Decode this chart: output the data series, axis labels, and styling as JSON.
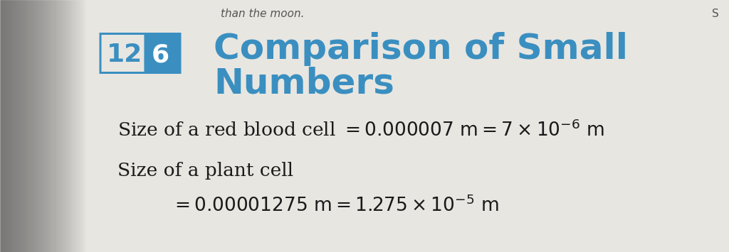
{
  "background_color": "#e8e6e1",
  "top_text": "than the moon.",
  "top_right_text": "S",
  "badge_left_text": "12.",
  "badge_right_text": "6",
  "badge_border_color": "#3a8fc0",
  "badge_left_bg": "#e8e6e1",
  "badge_right_bg": "#3a8fc0",
  "badge_left_text_color": "#3a8fc0",
  "badge_right_text_color": "#ffffff",
  "title_line1": "Comparison of Small",
  "title_line2": "Numbers",
  "title_color": "#3a8fc0",
  "body_line1": "Size of a red blood cell = 0.000007 m = 7 × 10",
  "body_line1_exp": "−6",
  "body_line1_end": "m",
  "body_line2": "Size of a plant cell",
  "body_line3": "     = 0.00001275 m = 1.275 × 10",
  "body_line3_exp": "−5",
  "body_line3_end": "m",
  "body_text_color": "#1a1a1a",
  "body_fontsize": 19,
  "title_fontsize": 36,
  "badge_fontsize": 26
}
